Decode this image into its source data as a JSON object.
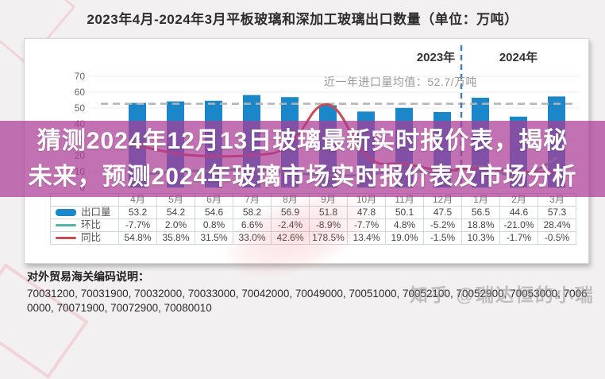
{
  "banner": {
    "line1": "猜测2024年12月13日玻璃最新实时报价表，揭秘",
    "line2": "未来，预测2024年玻璃市场实时报价表及市场分析",
    "background_color": "#aa3c96"
  },
  "chart_data": {
    "type": "bar",
    "title": "2023年4月-2024年3月平板玻璃和深加工玻璃出口数量（单位：万吨）",
    "categories": [
      "4月",
      "5月",
      "6月",
      "7月",
      "8月",
      "9月",
      "10月",
      "11月",
      "12月",
      "1月",
      "2月",
      "3月"
    ],
    "series": [
      {
        "name": "出口量",
        "type": "bar",
        "color": "#1b86c8",
        "values": [
          53.2,
          54.2,
          54.6,
          58.2,
          56.9,
          51.8,
          47.8,
          50.1,
          47.5,
          56.5,
          44.6,
          57.3
        ]
      },
      {
        "name": "环比",
        "type": "line",
        "color": "#54b1ac",
        "unit": "%",
        "values": [
          -7.7,
          2.0,
          0.8,
          6.6,
          -2.4,
          -8.9,
          -7.7,
          4.8,
          -5.2,
          18.8,
          -21.0,
          28.4
        ]
      },
      {
        "name": "同比",
        "type": "line",
        "color": "#cb4a52",
        "unit": "%",
        "values": [
          54.8,
          35.8,
          31.5,
          33.0,
          42.6,
          178.5,
          13.4,
          19.0,
          -1.5,
          10.3,
          -1.7,
          -0.5
        ]
      }
    ],
    "annotations": {
      "year_left": "2023年",
      "year_right": "2024年",
      "divider_between": [
        "12月",
        "1月"
      ],
      "avg_line_label": "近一年进口量均值：52.7/万吨",
      "avg_value": 52.7,
      "avg_line_color": "#b3b3b3",
      "divider_color": "#4a7fb5"
    },
    "y_axis": {
      "ticks": [
        0,
        10,
        20,
        30,
        40,
        50,
        60,
        70
      ],
      "ylim": [
        0,
        70
      ]
    },
    "grid": true,
    "legend_position": "table-left"
  },
  "footer": {
    "heading": "对外贸易海关编码说明：",
    "codes_line1": "70031200, 70031900, 70032000, 70033000, 70042000, 70049000, 70051000, 70052100, 70052900, 70053000, 7006",
    "codes_line2": "0000, 70071900, 70072900, 70080010"
  },
  "watermark": {
    "text": "知乎 @瑞达恒的小瑞"
  }
}
